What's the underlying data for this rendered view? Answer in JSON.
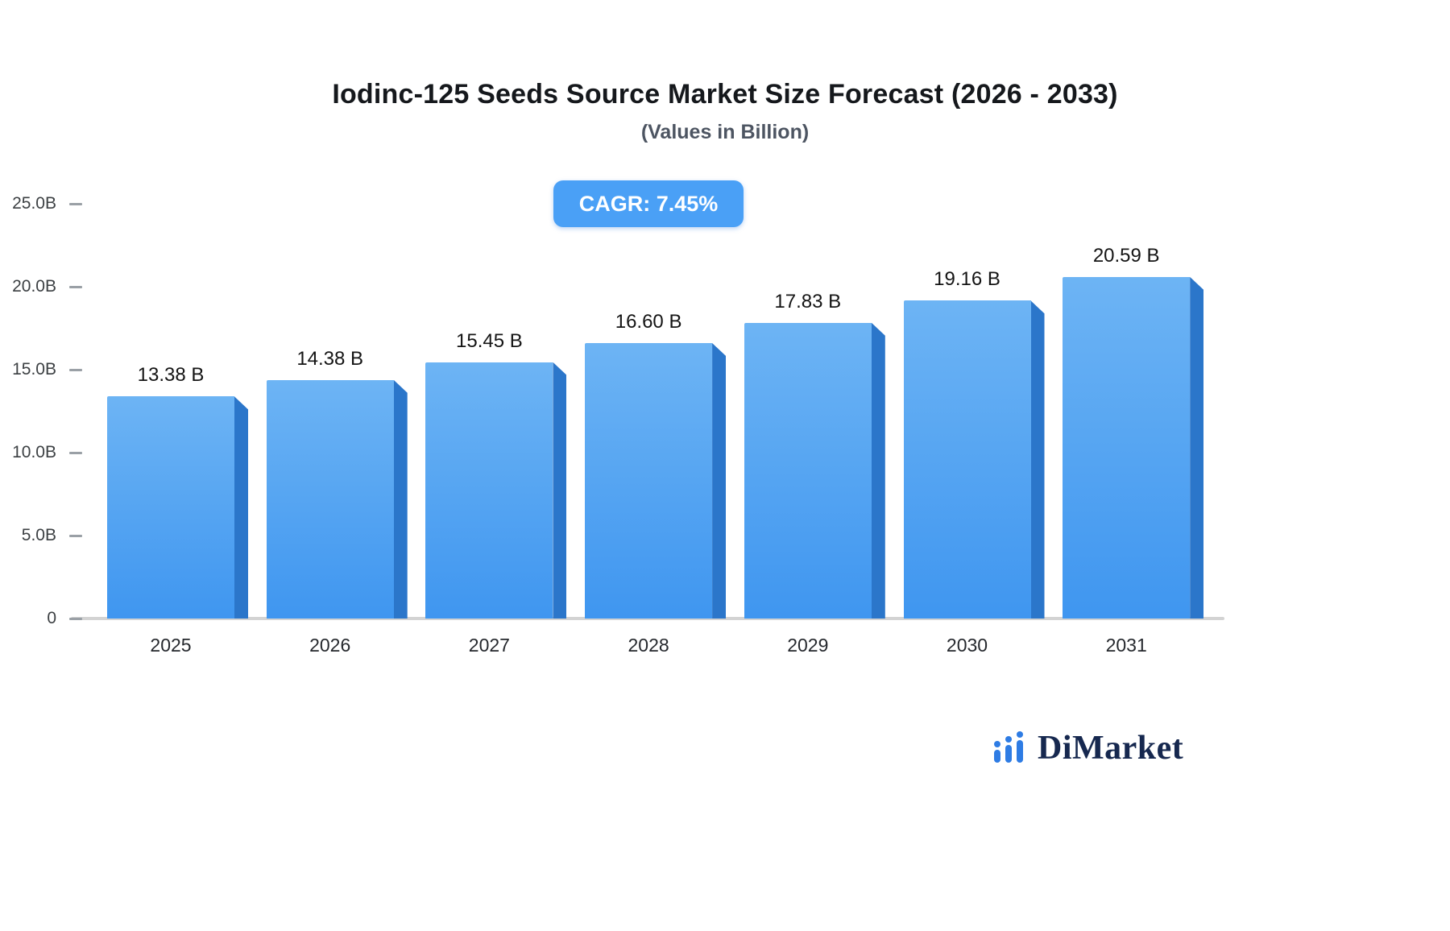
{
  "header": {
    "title": "Iodinc-125 Seeds Source Market Size Forecast (2026 - 2033)",
    "subtitle": "(Values in Billion)"
  },
  "badge": {
    "label": "CAGR: 7.45%",
    "bg_color": "#4aa0f6"
  },
  "chart_data": {
    "type": "bar",
    "title": "Iodinc-125 Seeds Source Market Size Forecast (2026 - 2033)",
    "subtitle": "(Values in Billion)",
    "categories": [
      "2025",
      "2026",
      "2027",
      "2028",
      "2029",
      "2030",
      "2031"
    ],
    "values": [
      13.38,
      14.38,
      15.45,
      16.6,
      17.83,
      19.16,
      20.59
    ],
    "value_labels": [
      "13.38 B",
      "14.38 B",
      "15.45 B",
      "16.60 B",
      "17.83 B",
      "19.16 B",
      "20.59 B"
    ],
    "xlabel": "",
    "ylabel": "",
    "ylim": [
      0,
      25
    ],
    "ytick_values": [
      25,
      20,
      15,
      10,
      5,
      0
    ],
    "ytick_labels": [
      "25.0B",
      "20.0B",
      "15.0B",
      "10.0B",
      "5.0B",
      "0"
    ],
    "grid": false,
    "legend": "none",
    "bar_color_top": "#6db4f4",
    "bar_color_bottom": "#3f96f0",
    "bar_side_color": "#2b76ca"
  },
  "brand": {
    "name": "DiMarket",
    "icon": "bar-chart-icon",
    "icon_color": "#2e7ce4",
    "text_color": "#16284f"
  }
}
